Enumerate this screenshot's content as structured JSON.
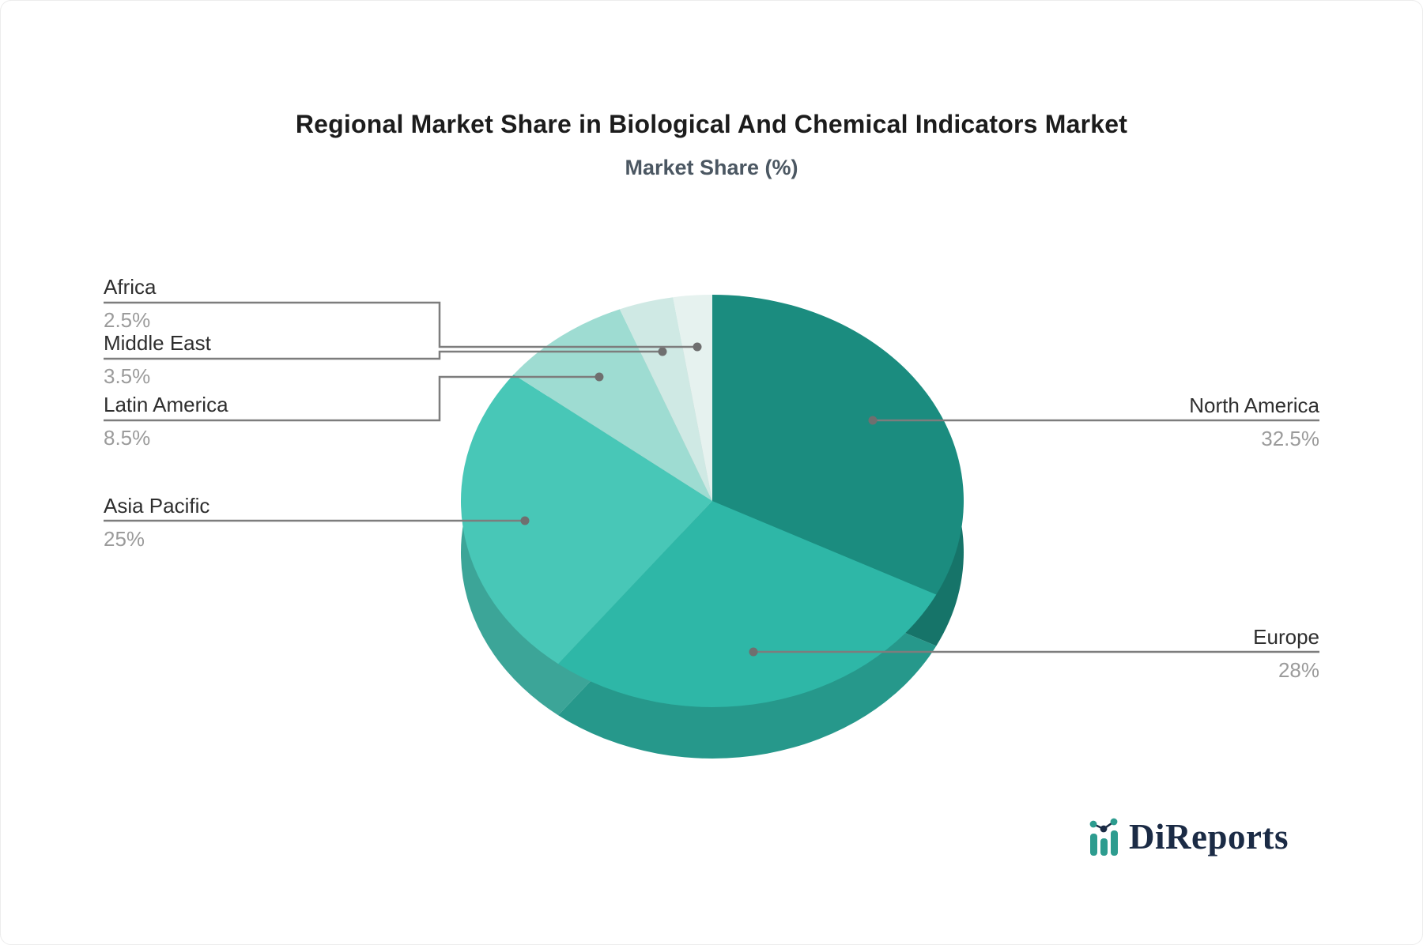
{
  "chart_data": {
    "type": "pie",
    "title": "Regional Market Share in Biological And Chemical Indicators Market",
    "subtitle": "Market Share (%)",
    "unit": "%",
    "start_angle_deg": 0,
    "clockwise": true,
    "effect_3d": true,
    "legend_position": "none",
    "series": [
      {
        "name": "North America",
        "value": 32.5,
        "display": "32.5%",
        "color": "#1b8c7f"
      },
      {
        "name": "Europe",
        "value": 28,
        "display": "28%",
        "color": "#2eb7a7"
      },
      {
        "name": "Asia Pacific",
        "value": 25,
        "display": "25%",
        "color": "#48c7b7"
      },
      {
        "name": "Latin America",
        "value": 8.5,
        "display": "8.5%",
        "color": "#9edcd2"
      },
      {
        "name": "Middle East",
        "value": 3.5,
        "display": "3.5%",
        "color": "#cfe9e4"
      },
      {
        "name": "Africa",
        "value": 2.5,
        "display": "2.5%",
        "color": "#e6f2ef"
      }
    ],
    "title_color": "#1c1c1c",
    "subtitle_color": "#4b5762",
    "label_name_color": "#2e2e2e",
    "label_value_color": "#9b9b9b",
    "leader_color": "#7d7d7d",
    "dot_color": "#6f6f6f"
  },
  "branding": {
    "logo_text": "DiReports",
    "logo_color": "#1b2b45",
    "logo_accent": "#2d9c8f"
  }
}
